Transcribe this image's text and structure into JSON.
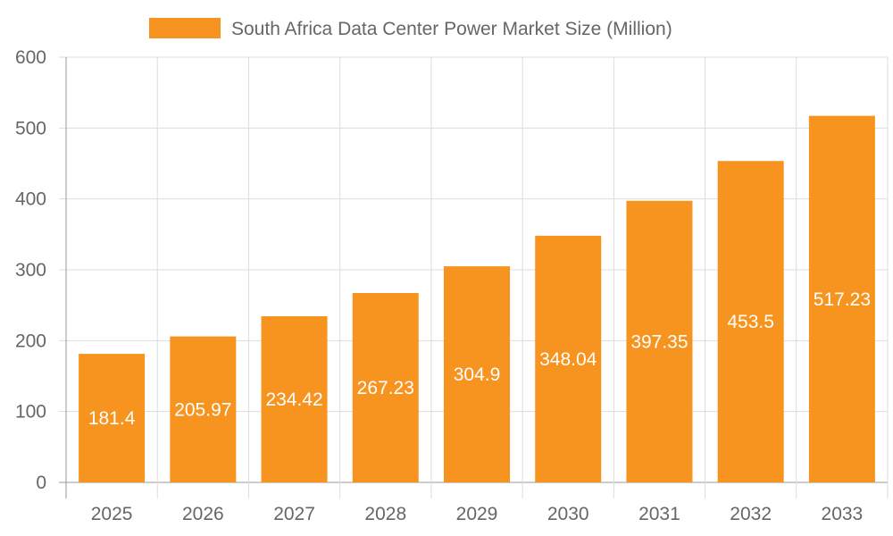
{
  "chart_data": {
    "type": "bar",
    "title": "",
    "xlabel": "",
    "ylabel": "",
    "categories": [
      "2025",
      "2026",
      "2027",
      "2028",
      "2029",
      "2030",
      "2031",
      "2032",
      "2033"
    ],
    "series": [
      {
        "name": "South Africa Data Center Power Market Size (Million)",
        "values": [
          181.4,
          205.97,
          234.42,
          267.23,
          304.9,
          348.04,
          397.35,
          453.5,
          517.23
        ],
        "color": "#F7941F"
      }
    ],
    "ylim": [
      0,
      600
    ],
    "yticks": [
      0,
      100,
      200,
      300,
      400,
      500,
      600
    ],
    "grid": true,
    "legend": "top",
    "data_labels": true
  }
}
